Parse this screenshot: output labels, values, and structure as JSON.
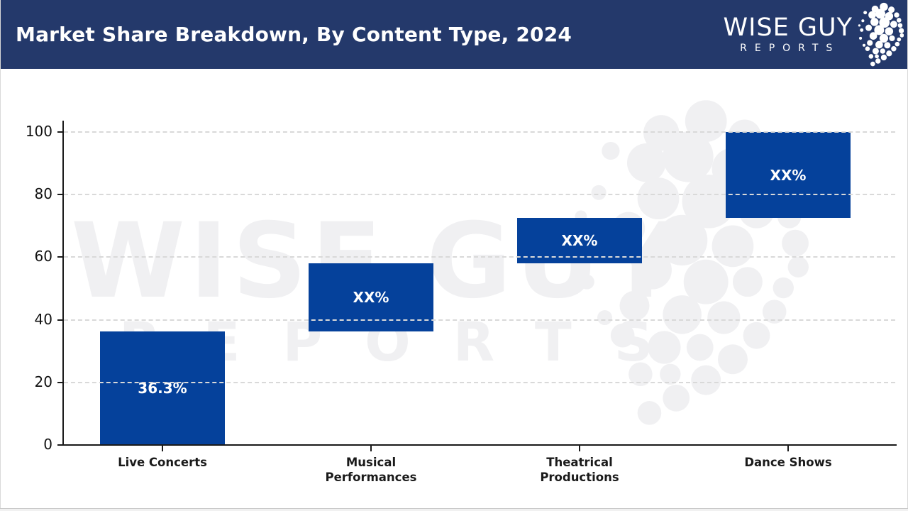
{
  "header": {
    "title": "Market Share Breakdown, By Content Type, 2024",
    "logo": {
      "line1": "WISE GUY",
      "line2": "REPORTS"
    },
    "bg_color": "#24396B"
  },
  "watermark": {
    "line1": "WISE GUY",
    "line2": "REPORTS"
  },
  "chart_data": {
    "type": "bar",
    "subtype": "waterfall",
    "title": "Market Share Breakdown, By Content Type, 2024",
    "categories": [
      "Live Concerts",
      "Musical\nPerformances",
      "Theatrical\nProductions",
      "Dance Shows"
    ],
    "segments": [
      {
        "category": "Live Concerts",
        "start": 0,
        "end": 36.3,
        "label": "36.3%"
      },
      {
        "category": "Musical Performances",
        "start": 36.3,
        "end": 58.0,
        "label": "XX%"
      },
      {
        "category": "Theatrical Productions",
        "start": 58.0,
        "end": 72.5,
        "label": "XX%"
      },
      {
        "category": "Dance Shows",
        "start": 72.5,
        "end": 100,
        "label": "XX%"
      }
    ],
    "ylim": [
      0,
      100
    ],
    "yticks": [
      0,
      20,
      40,
      60,
      80,
      100
    ],
    "xlabel": "",
    "ylabel": "",
    "grid": "dashed-horizontal",
    "legend": "none",
    "bar_color": "#05419B",
    "label_color": "#ffffff"
  }
}
